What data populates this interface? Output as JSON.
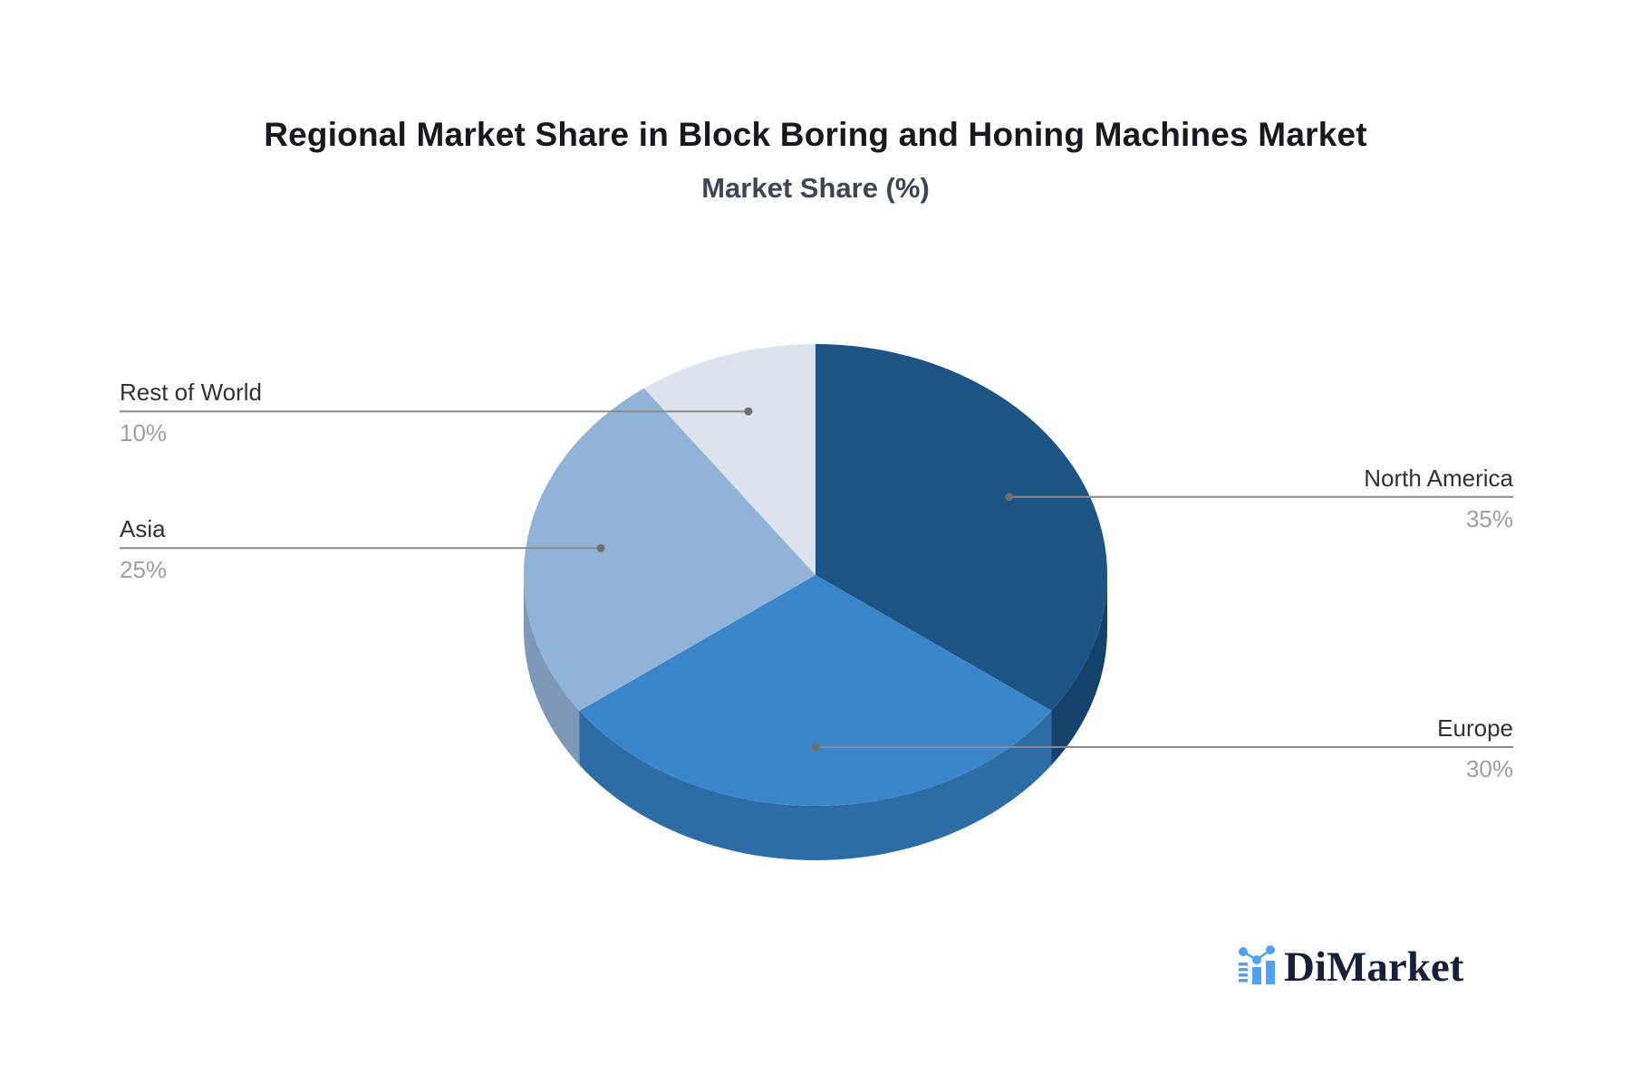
{
  "header": {
    "title": "Regional Market Share in Block Boring and Honing Machines Market",
    "subtitle": "Market Share (%)"
  },
  "chart_data": {
    "type": "pie",
    "style": "3d-pie",
    "title": "Regional Market Share in Block Boring and Honing Machines Market",
    "subtitle": "Market Share (%)",
    "unit": "%",
    "start_angle_deg": 0,
    "direction": "clockwise",
    "legend_position": "callout-labels",
    "slices": [
      {
        "label": "North America",
        "value": 35,
        "display": "35%",
        "color": "#1d5486",
        "side_color": "#15426b",
        "label_side": "right"
      },
      {
        "label": "Europe",
        "value": 30,
        "display": "30%",
        "color": "#3b86ca",
        "side_color": "#2e6ca6",
        "label_side": "right"
      },
      {
        "label": "Asia",
        "value": 25,
        "display": "25%",
        "color": "#92b3d8",
        "side_color": "#7e99b8",
        "label_side": "left"
      },
      {
        "label": "Rest of World",
        "value": 10,
        "display": "10%",
        "color": "#dde3ed",
        "side_color": "#c3cddb",
        "label_side": "left"
      }
    ],
    "leader_line_color": "#8a8a8a",
    "leader_dot_color": "#6f6f6f",
    "label_text_color": "#2e3136",
    "value_text_color": "#9aa0a6"
  },
  "branding": {
    "logo_text": "DiMarket",
    "logo_icon": "bar-line-chart-icon",
    "logo_icon_color": "#4ea2f0",
    "logo_text_color": "#17203a"
  }
}
